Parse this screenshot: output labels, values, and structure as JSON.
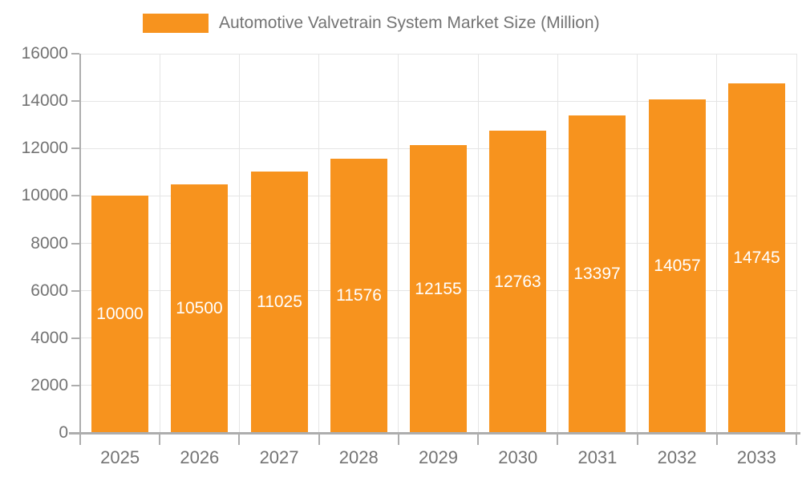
{
  "chart_data": {
    "type": "bar",
    "title": "Automotive Valvetrain System Market Size (Million)",
    "categories": [
      "2025",
      "2026",
      "2027",
      "2028",
      "2029",
      "2030",
      "2031",
      "2032",
      "2033"
    ],
    "values": [
      10000,
      10500,
      11025,
      11576,
      12155,
      12763,
      13397,
      14057,
      14745
    ],
    "xlabel": "",
    "ylabel": "",
    "ylim": [
      0,
      16000
    ],
    "ytick_step": 2000,
    "ytick_labels": [
      "0",
      "2000",
      "4000",
      "6000",
      "8000",
      "10000",
      "12000",
      "14000",
      "16000"
    ],
    "grid": true,
    "legend_position": "top",
    "colors": {
      "bar": "#F7931E",
      "value_label": "#FFFFFF",
      "axis_text": "#737373",
      "grid_line": "#E5E5E5",
      "axis_line": "#ADADAD"
    }
  }
}
